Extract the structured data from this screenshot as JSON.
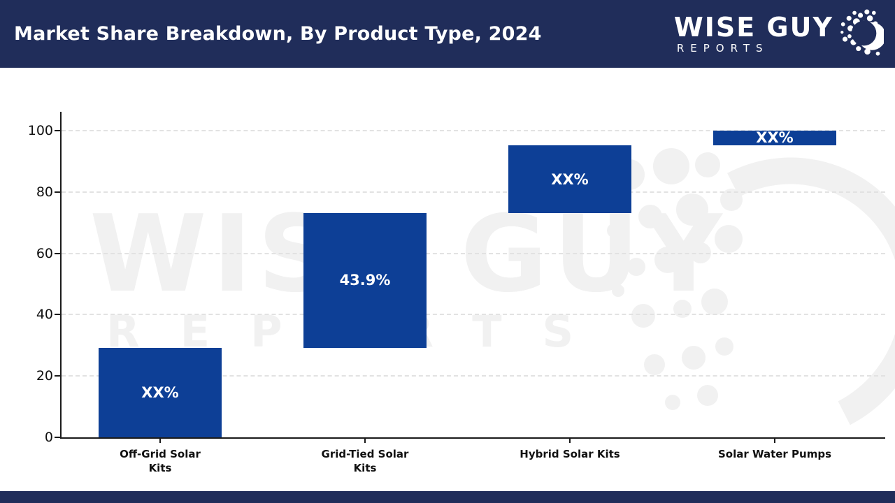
{
  "header": {
    "title": "Market Share Breakdown, By Product Type, 2024",
    "brand": {
      "line1": "WISE GUY",
      "line2": "REPORTS"
    }
  },
  "watermark": {
    "line1": "WISE GUY",
    "line2": "REPORTS"
  },
  "colors": {
    "header_bg": "#202d5a",
    "footer_bg": "#202d5a",
    "bar": "#0d3f96",
    "bar_label": "#ffffff",
    "gridline": "#e2e2e2",
    "axis": "#1a1a1a",
    "watermark": "#f1f1f1"
  },
  "chart_data": {
    "type": "bar",
    "subtype": "waterfall",
    "title": "Market Share Breakdown, By Product Type, 2024",
    "xlabel": "",
    "ylabel": "",
    "categories": [
      "Off-Grid Solar\nKits",
      "Grid-Tied Solar\nKits",
      "Hybrid Solar Kits",
      "Solar Water Pumps"
    ],
    "segments": [
      {
        "category": "Off-Grid Solar Kits",
        "label": "XX%",
        "start": 0,
        "end": 29.2,
        "value": 29.2
      },
      {
        "category": "Grid-Tied Solar Kits",
        "label": "43.9%",
        "start": 29.2,
        "end": 73.1,
        "value": 43.9
      },
      {
        "category": "Hybrid Solar Kits",
        "label": "XX%",
        "start": 73.1,
        "end": 95.2,
        "value": 22.1
      },
      {
        "category": "Solar Water Pumps",
        "label": "XX%",
        "start": 95.2,
        "end": 100.1,
        "value": 4.9
      }
    ],
    "yticks": [
      0,
      20,
      40,
      60,
      80,
      100
    ],
    "ylim": [
      0,
      106
    ],
    "grid": "horizontal-dashed",
    "legend": "none"
  }
}
